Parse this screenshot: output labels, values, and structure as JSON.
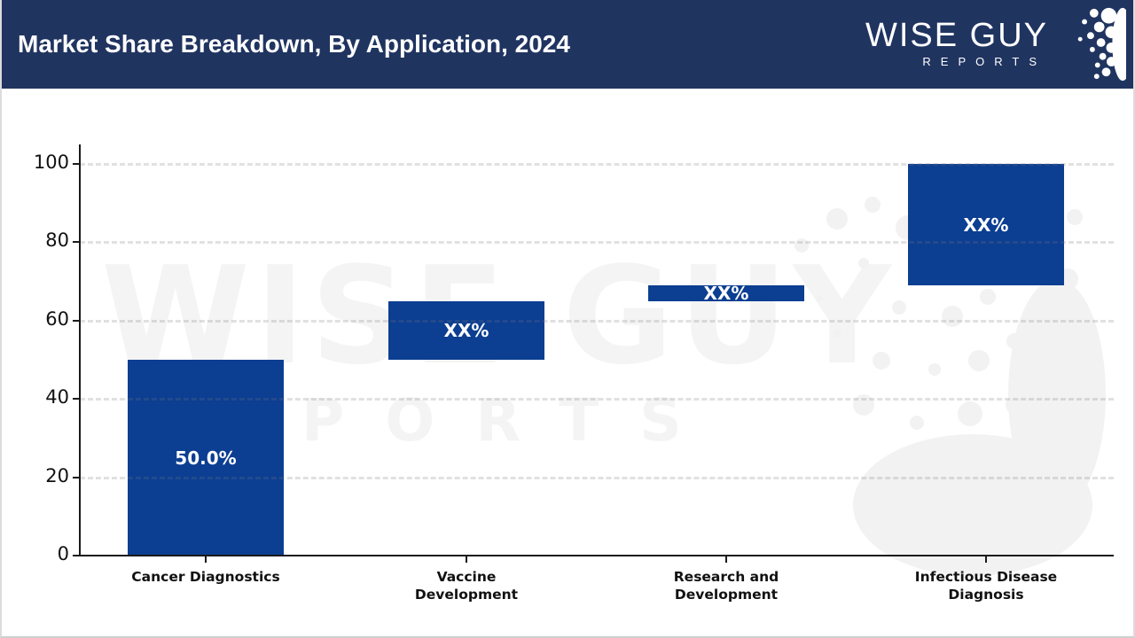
{
  "header": {
    "title": "Market Share Breakdown, By Application, 2024",
    "bg_color": "#203460",
    "logo": {
      "line1": "WISE GUY",
      "line2": "REPORTS"
    },
    "icons": {
      "logo_face": "face-profile-dots-icon"
    }
  },
  "watermark": {
    "line1": "WISE GUY",
    "line2": "REPORTS",
    "color": "#f4f4f4",
    "face_icon": "face-profile-dots-watermark"
  },
  "chart_data": {
    "type": "bar",
    "subtype": "waterfall-cumulative",
    "title": "Market Share Breakdown, By Application, 2024",
    "categories": [
      "Cancer Diagnostics",
      "Vaccine Development",
      "Research and Development",
      "Infectious Disease Diagnosis"
    ],
    "category_label_lines": [
      [
        "Cancer Diagnostics"
      ],
      [
        "Vaccine",
        "Development"
      ],
      [
        "Research and",
        "Development"
      ],
      [
        "Infectious Disease",
        "Diagnosis"
      ]
    ],
    "segments": [
      {
        "category": "Cancer Diagnostics",
        "start": 0,
        "end": 50,
        "value_label": "50.0%"
      },
      {
        "category": "Vaccine Development",
        "start": 50,
        "end": 65,
        "value_label": "XX%"
      },
      {
        "category": "Research and Development",
        "start": 65,
        "end": 69,
        "value_label": "XX%"
      },
      {
        "category": "Infectious Disease Diagnosis",
        "start": 69,
        "end": 100,
        "value_label": "XX%"
      }
    ],
    "xlabel": "",
    "ylabel": "",
    "yticks": [
      0,
      20,
      40,
      60,
      80,
      100
    ],
    "ylim": [
      0,
      105
    ],
    "grid": true,
    "grid_style": "dashed",
    "bar_color": "#0c3e92",
    "bar_label_color": "#ffffff",
    "legend": "none"
  }
}
